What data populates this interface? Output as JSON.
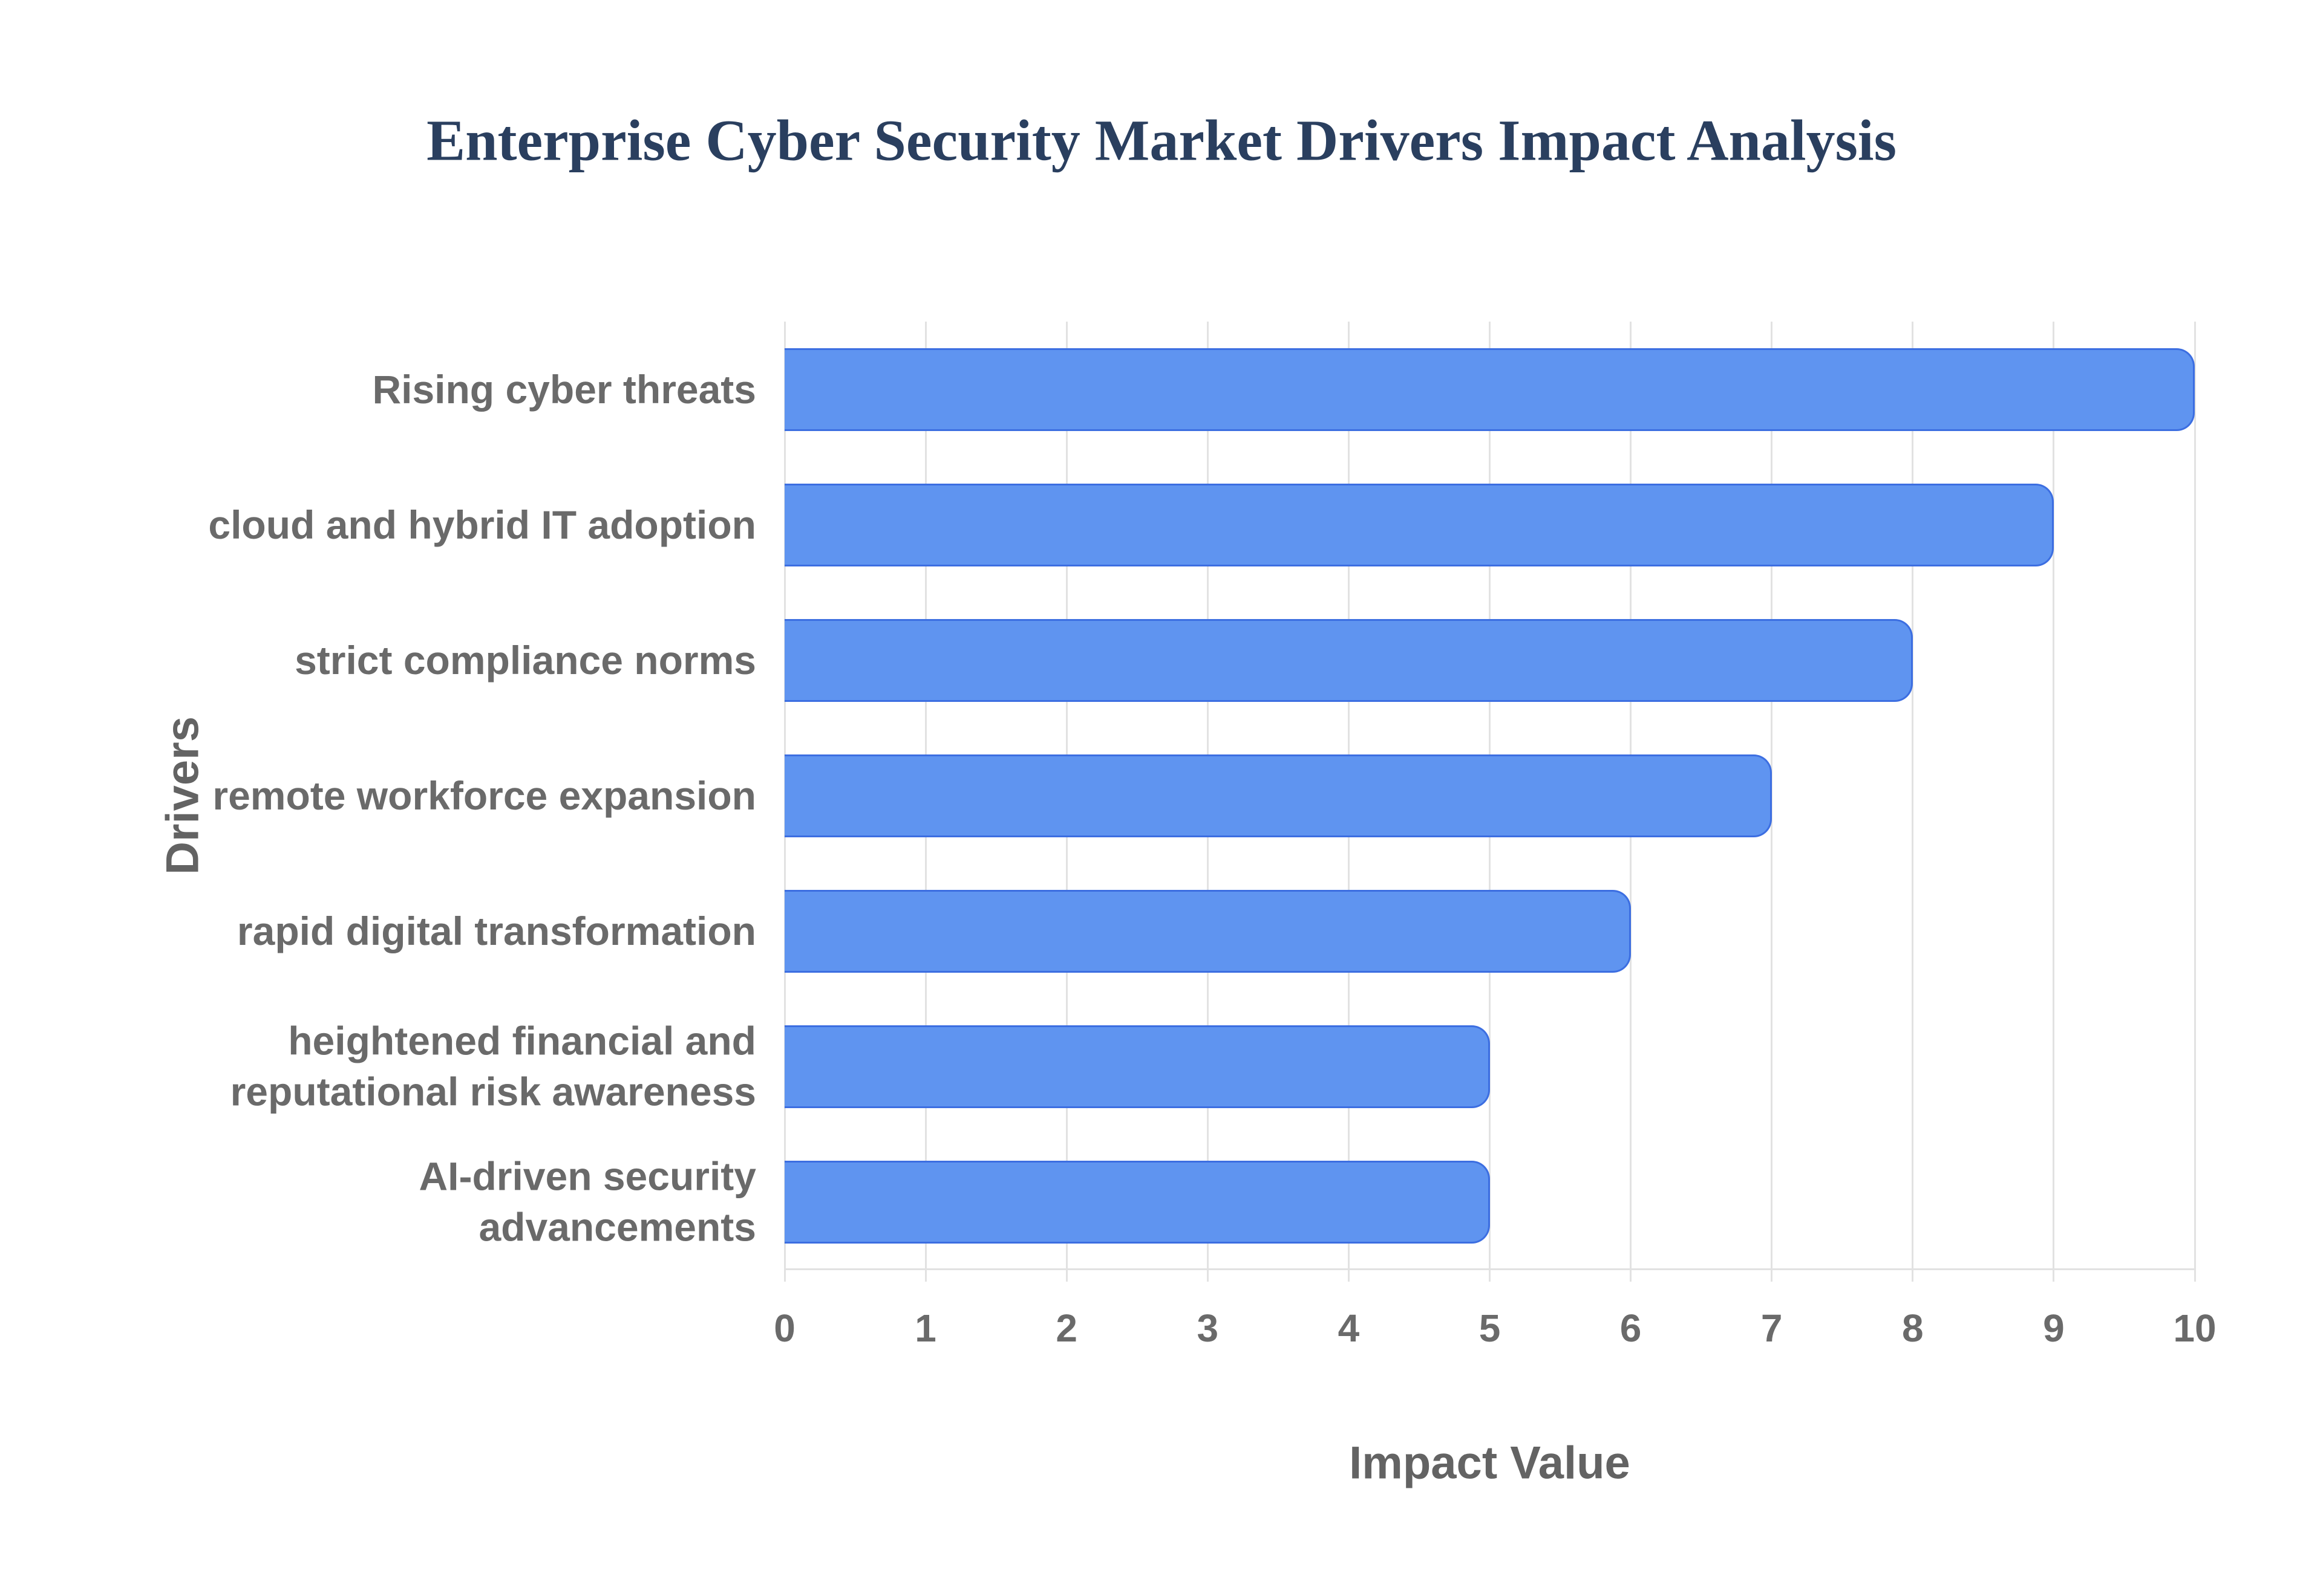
{
  "chart_data": {
    "type": "bar",
    "orientation": "horizontal",
    "title": "Enterprise Cyber Security Market Drivers Impact Analysis",
    "xlabel": "Impact Value",
    "ylabel": "Drivers",
    "categories": [
      "Rising cyber threats",
      "cloud and hybrid IT adoption",
      "strict compliance norms",
      "remote workforce expansion",
      "rapid digital transformation",
      "heightened financial and reputational risk awareness",
      "AI-driven security advancements"
    ],
    "values": [
      10,
      9,
      8,
      7,
      6,
      5,
      5
    ],
    "xlim": [
      0,
      10
    ],
    "xticks": [
      0,
      1,
      2,
      3,
      4,
      5,
      6,
      7,
      8,
      9,
      10
    ],
    "grid": true,
    "legend": false,
    "colors": {
      "background": "#ffffff",
      "bar_fill": "#5f94f0",
      "bar_border": "#3c6ee1",
      "gridline": "#e2e2e2",
      "title_text": "#2a3f5f",
      "axis_text": "#6a6a6a",
      "axis_title_text": "#636363"
    }
  }
}
